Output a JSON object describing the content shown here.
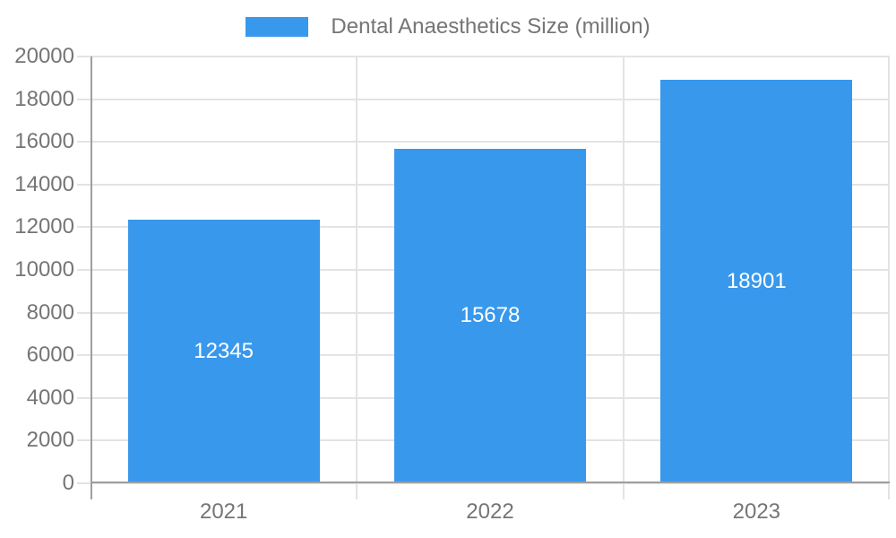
{
  "chart_data": {
    "type": "bar",
    "title": "Dental Anaesthetics Size (million)",
    "categories": [
      "2021",
      "2022",
      "2023"
    ],
    "values": [
      12345,
      15678,
      18901
    ],
    "bar_value_labels": [
      "12345",
      "15678",
      "18901"
    ],
    "xlabel": "",
    "ylabel": "",
    "ylim": [
      0,
      20000
    ],
    "ytick_step": 2000,
    "ytick_labels": [
      "0",
      "2000",
      "4000",
      "6000",
      "8000",
      "10000",
      "12000",
      "14000",
      "16000",
      "18000",
      "20000"
    ],
    "grid": true,
    "legend_position": "top",
    "colors": {
      "bar": "#3898ec",
      "bar_label_text": "#ffffff",
      "axis_text": "#757575",
      "legend_text": "#757575",
      "gridline": "#e3e3e3",
      "axis_line": "#9e9e9e",
      "background": "#ffffff"
    }
  }
}
